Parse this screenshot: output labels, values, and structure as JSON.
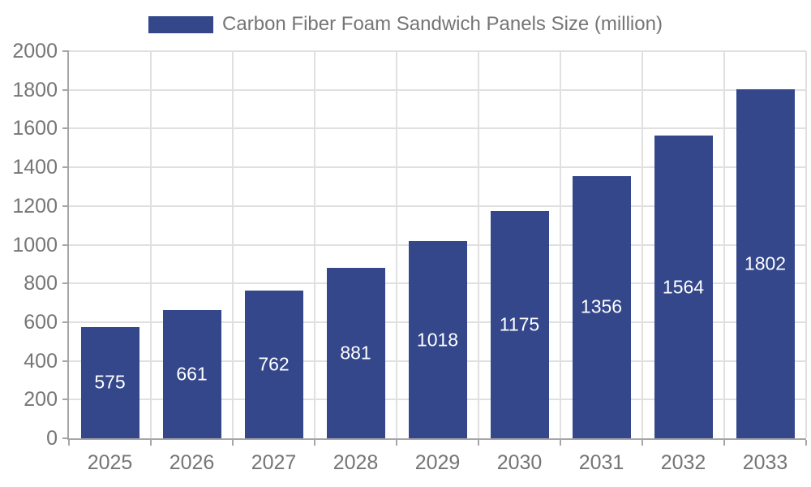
{
  "legend": {
    "label": "Carbon Fiber Foam Sandwich Panels Size (million)"
  },
  "colors": {
    "bar": "#34478B",
    "axis_line": "#a6a6a6",
    "gridline": "#e0e0e0",
    "axis_text": "#757575",
    "legend_text": "#757575",
    "bar_value_text": "#ffffff",
    "background": "#ffffff"
  },
  "chart_data": {
    "type": "bar",
    "title": "Carbon Fiber Foam Sandwich Panels Size (million)",
    "categories": [
      "2025",
      "2026",
      "2027",
      "2028",
      "2029",
      "2030",
      "2031",
      "2032",
      "2033"
    ],
    "values": [
      575,
      661,
      762,
      881,
      1018,
      1175,
      1356,
      1564,
      1802
    ],
    "xlabel": "",
    "ylabel": "",
    "ylim": [
      0,
      2000
    ],
    "ytick_step": 200,
    "grid": true,
    "legend_position": "top",
    "value_labels": "inside-center"
  }
}
